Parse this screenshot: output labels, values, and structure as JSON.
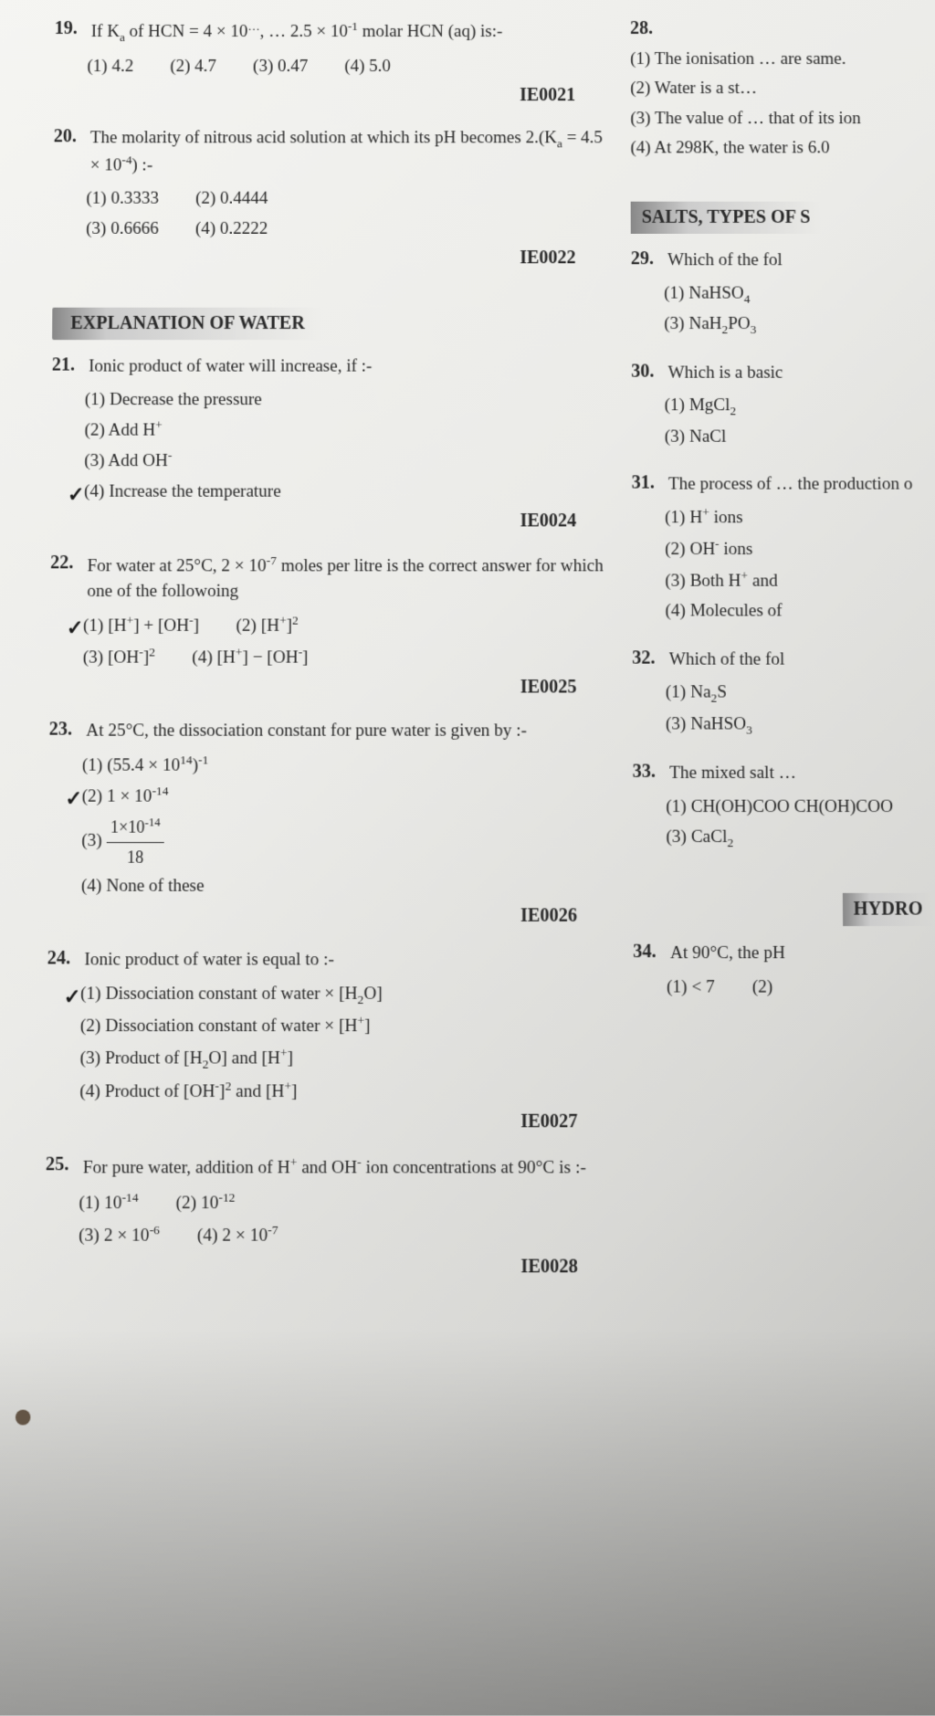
{
  "left": {
    "q19": {
      "num": "19.",
      "text": "If K<sub>a</sub> of HCN = 4 × 10<sup>…</sup>, … 2.5 × 10<sup>-1</sup> molar HCN (aq) is:-",
      "opts": [
        "(1) 4.2",
        "(2) 4.7",
        "(3) 0.47",
        "(4) 5.0"
      ],
      "code": "IE0021"
    },
    "q20": {
      "num": "20.",
      "text": "The molarity of nitrous acid solution at which its pH becomes 2.(K<sub>a</sub> = 4.5 × 10<sup>-4</sup>) :-",
      "opts": [
        "(1) 0.3333",
        "(2) 0.4444",
        "(3) 0.6666",
        "(4) 0.2222"
      ],
      "code": "IE0022"
    },
    "sectionA": "EXPLANATION OF WATER",
    "q21": {
      "num": "21.",
      "text": "Ionic product of water will increase, if :-",
      "opts": [
        "(1) Decrease the pressure",
        "(2) Add H<sup>+</sup>",
        "(3) Add OH<sup>-</sup>",
        "(4) Increase the temperature"
      ],
      "code": "IE0024"
    },
    "q22": {
      "num": "22.",
      "text": "For water at 25°C, 2 × 10<sup>-7</sup> moles per litre is the correct answer for which one of the followoing",
      "opts": [
        "(1) [H<sup>+</sup>] + [OH<sup>-</sup>]",
        "(2) [H<sup>+</sup>]<sup>2</sup>",
        "(3) [OH<sup>-</sup>]<sup>2</sup>",
        "(4) [H<sup>+</sup>] − [OH<sup>-</sup>]"
      ],
      "code": "IE0025"
    },
    "q23": {
      "num": "23.",
      "text": "At 25°C, the dissociation constant for pure water is given by :-",
      "opts": [
        "(1) (55.4 × 10<sup>14</sup>)<sup>-1</sup>",
        "(2) 1 × 10<sup>-14</sup>",
        "(3) ",
        "(4) None of these"
      ],
      "code": "IE0026"
    },
    "q24": {
      "num": "24.",
      "text": "Ionic product of water is equal to :-",
      "opts": [
        "(1) Dissociation constant of water × [H<sub>2</sub>O]",
        "(2) Dissociation constant of water × [H<sup>+</sup>]",
        "(3) Product of [H<sub>2</sub>O] and [H<sup>+</sup>]",
        "(4) Product of [OH<sup>-</sup>]<sup>2</sup> and [H<sup>+</sup>]"
      ],
      "code": "IE0027"
    },
    "q25": {
      "num": "25.",
      "text": "For pure water, addition of H<sup>+</sup> and OH<sup>-</sup> ion concentrations at 90°C is :-",
      "opts": [
        "(1) 10<sup>-14</sup>",
        "(2) 10<sup>-12</sup>",
        "(3) 2 × 10<sup>-6</sup>",
        "(4) 2 × 10<sup>-7</sup>"
      ],
      "code": "IE0028"
    }
  },
  "right": {
    "q28": {
      "num": "28.",
      "opts": [
        "(1) The ionisation … are same.",
        "(2) Water is a st…",
        "(3) The value of … that of its ion",
        "(4) At 298K, the water is 6.0"
      ]
    },
    "sectionB": "SALTS, TYPES OF S",
    "q29": {
      "num": "29.",
      "text": "Which of the fol",
      "opts": [
        "(1) NaHSO<sub>4</sub>",
        "(3) NaH<sub>2</sub>PO<sub>3</sub>"
      ]
    },
    "q30": {
      "num": "30.",
      "text": "Which is a basic",
      "opts": [
        "(1) MgCl<sub>2</sub>",
        "(3) NaCl"
      ]
    },
    "q31": {
      "num": "31.",
      "text": "The process of … the production o",
      "opts": [
        "(1) H<sup>+</sup> ions",
        "(2) OH<sup>-</sup> ions",
        "(3) Both H<sup>+</sup> and",
        "(4) Molecules of"
      ]
    },
    "q32": {
      "num": "32.",
      "text": "Which of the fol",
      "opts": [
        "(1) Na<sub>2</sub>S",
        "(3) NaHSO<sub>3</sub>"
      ]
    },
    "q33": {
      "num": "33.",
      "text": "The mixed salt …",
      "opts": [
        "(1) CH(OH)COO     CH(OH)COO",
        "(3) CaCl<sub>2</sub>"
      ]
    },
    "sectionC": "HYDRO",
    "q34": {
      "num": "34.",
      "text": "At 90°C, the pH",
      "opts": [
        "(1) < 7",
        "(2)"
      ]
    }
  }
}
